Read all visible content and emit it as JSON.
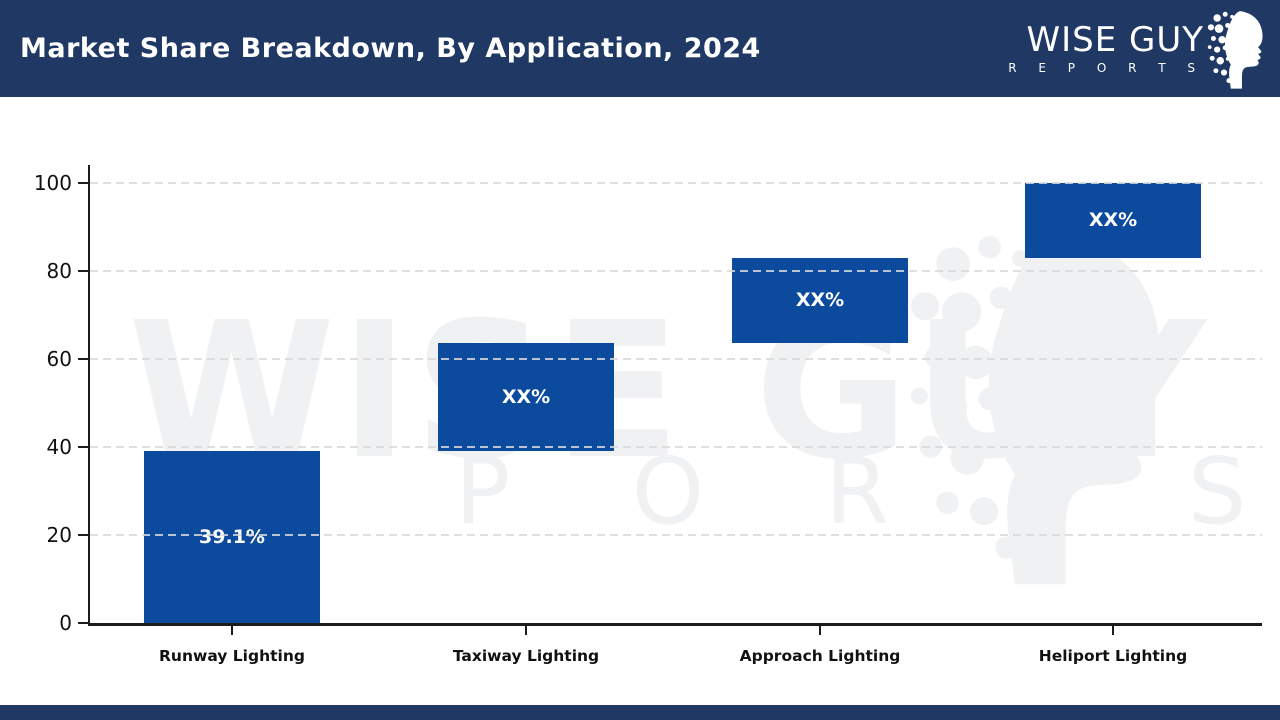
{
  "header": {
    "title": "Market Share Breakdown, By Application, 2024",
    "logo_line1": "WISE GUY",
    "logo_line2": "R E P O R T S"
  },
  "watermark": {
    "line1": "WISE GUY",
    "line2": "P O R T S"
  },
  "colors": {
    "header_bg": "#1f3864",
    "footer_bg": "#1f3864",
    "bar_fill": "#0c4a9e",
    "bar_label": "#ffffff",
    "gridline": "#d9d9d9",
    "watermark": "#f0f1f3",
    "axis": "#1c1c1c"
  },
  "chart_data": {
    "type": "bar",
    "subtype": "waterfall",
    "title": "Market Share Breakdown, By Application, 2024",
    "xlabel": "",
    "ylabel": "",
    "categories": [
      "Runway Lighting",
      "Taxiway Lighting",
      "Approach Lighting",
      "Heliport Lighting"
    ],
    "segments": [
      {
        "category": "Runway Lighting",
        "start": 0,
        "end": 39.1,
        "label": "39.1%"
      },
      {
        "category": "Taxiway Lighting",
        "start": 39.1,
        "end": 63.6,
        "label": "XX%"
      },
      {
        "category": "Approach Lighting",
        "start": 63.6,
        "end": 83.0,
        "label": "XX%"
      },
      {
        "category": "Heliport Lighting",
        "start": 83.0,
        "end": 100.0,
        "label": "XX%"
      }
    ],
    "yticks": [
      0,
      20,
      40,
      60,
      80,
      100
    ],
    "ylim": [
      0,
      105
    ],
    "grid": "horizontal dashed, drawn over bars",
    "legend": "none"
  }
}
